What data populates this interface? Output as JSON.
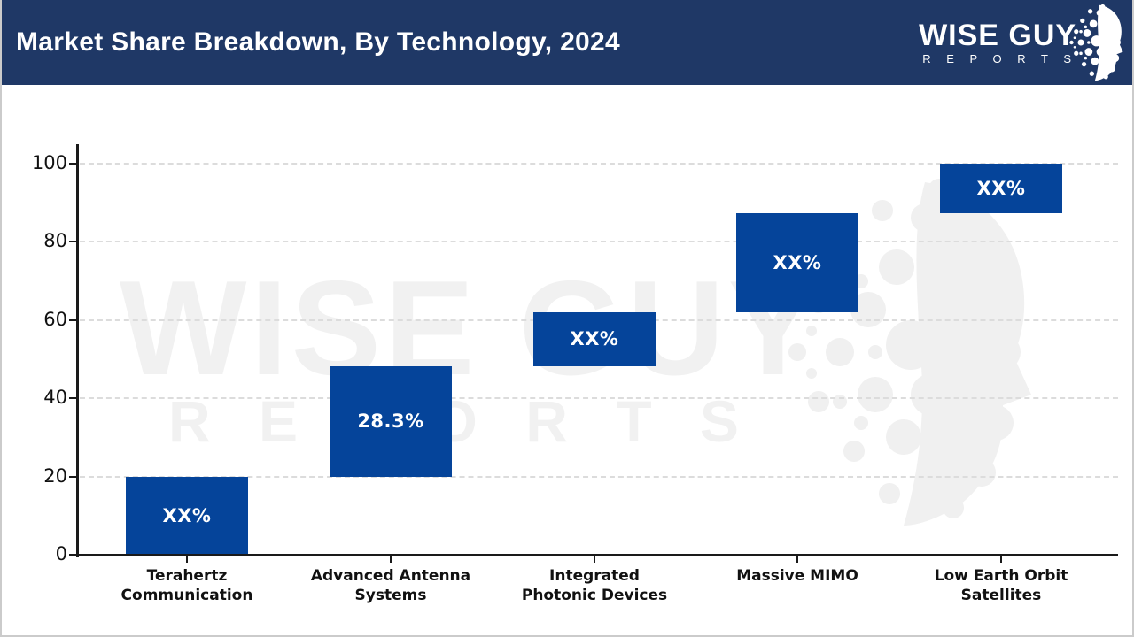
{
  "header": {
    "title": "Market Share Breakdown, By Technology, 2024",
    "logo": {
      "name": "WISE GUY",
      "sub": "R E P O R T S"
    }
  },
  "watermark": {
    "name": "WISE GUY",
    "sub": "R E P O R T S"
  },
  "chart_data": {
    "type": "bar",
    "variant": "floating-waterfall",
    "title": "Market Share Breakdown, By Technology, 2024",
    "categories": [
      "Terahertz Communication",
      "Advanced Antenna Systems",
      "Integrated Photonic Devices",
      "Massive MIMO",
      "Low Earth Orbit Satellites"
    ],
    "category_lines": [
      [
        "Terahertz",
        "Communication"
      ],
      [
        "Advanced Antenna",
        "Systems"
      ],
      [
        "Integrated",
        "Photonic Devices"
      ],
      [
        "Massive MIMO"
      ],
      [
        "Low Earth Orbit",
        "Satellites"
      ]
    ],
    "segments": [
      {
        "category": "Terahertz Communication",
        "start": 0,
        "end": 20,
        "label": "XX%"
      },
      {
        "category": "Advanced Antenna Systems",
        "start": 20,
        "end": 48.3,
        "label": "28.3%"
      },
      {
        "category": "Integrated Photonic Devices",
        "start": 48.3,
        "end": 62,
        "label": "XX%"
      },
      {
        "category": "Massive MIMO",
        "start": 62,
        "end": 87.4,
        "label": "XX%"
      },
      {
        "category": "Low Earth Orbit Satellites",
        "start": 87.4,
        "end": 100,
        "label": "XX%"
      }
    ],
    "yticks": [
      0,
      20,
      40,
      60,
      80,
      100
    ],
    "ylim": [
      0,
      105
    ],
    "xlabel": "",
    "ylabel": "",
    "grid": {
      "horizontal": true,
      "style": "dashed",
      "color": "#dcdcdc"
    },
    "legend": "none",
    "bar_color": "#05449a"
  },
  "colors": {
    "header_bg": "#1f3866",
    "bar": "#05449a",
    "axis": "#1a1a1a",
    "grid": "#dcdcdc",
    "watermark": "#f1f1f1",
    "frame_border": "#cbcbcb",
    "title_text": "#ffffff"
  }
}
